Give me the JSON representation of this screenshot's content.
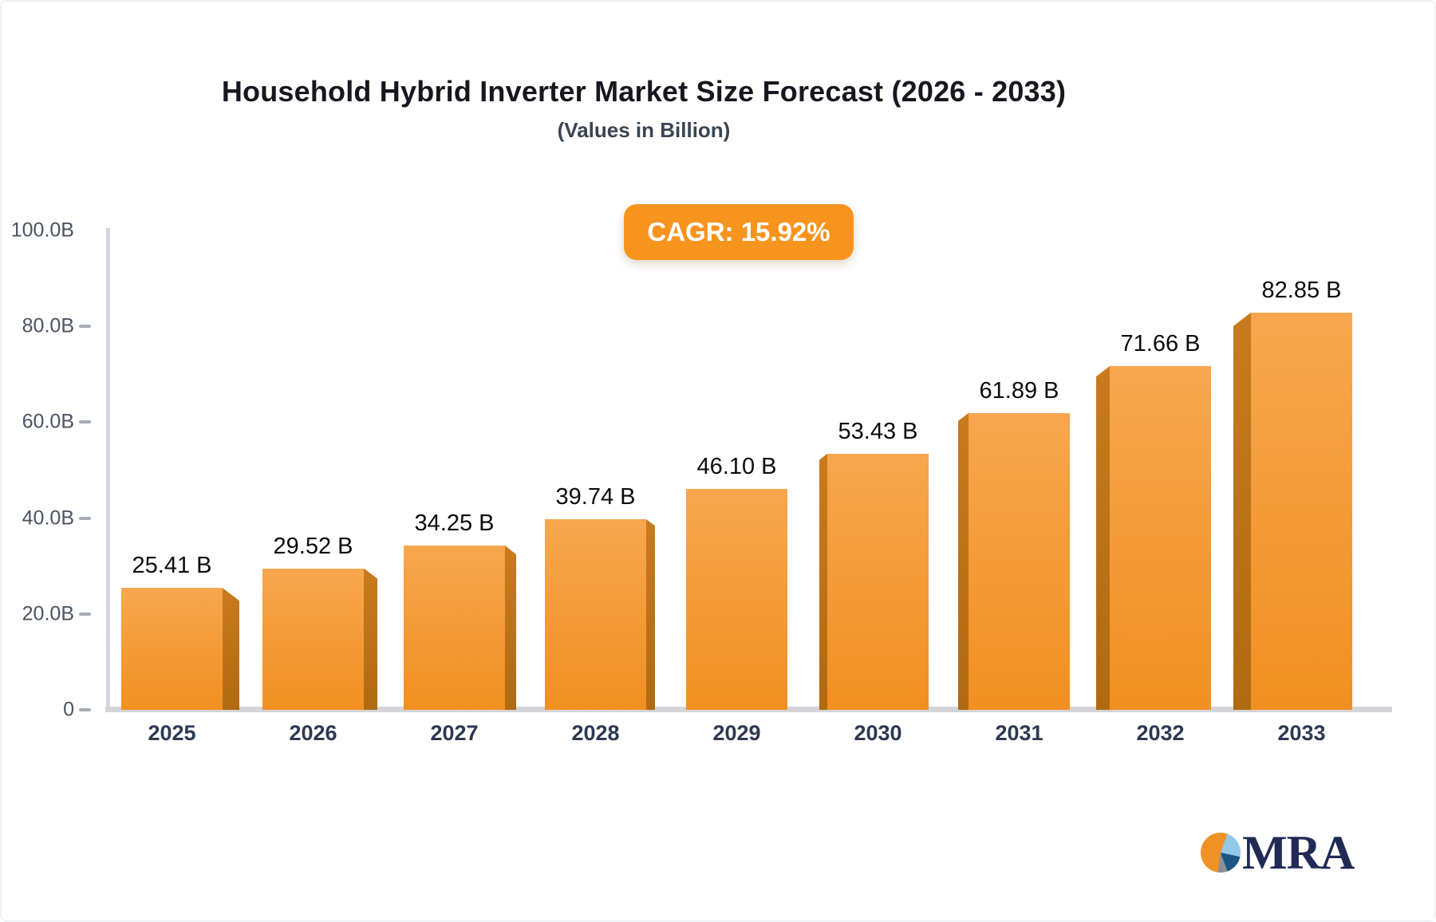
{
  "chart_data": {
    "type": "bar",
    "title": "Household Hybrid Inverter Market Size Forecast (2026 - 2033)",
    "subtitle": "(Values in Billion)",
    "annotation": "CAGR: 15.92%",
    "categories": [
      "2025",
      "2026",
      "2027",
      "2028",
      "2029",
      "2030",
      "2031",
      "2032",
      "2033"
    ],
    "values": [
      25.41,
      29.52,
      34.25,
      39.74,
      46.1,
      53.43,
      61.89,
      71.66,
      82.85
    ],
    "value_labels": [
      "25.41 B",
      "29.52 B",
      "34.25 B",
      "39.74 B",
      "46.10 B",
      "53.43 B",
      "61.89 B",
      "71.66 B",
      "82.85 B"
    ],
    "xlabel": "",
    "ylabel": "",
    "ylim": [
      0,
      100
    ],
    "yticks": [
      {
        "label": "0",
        "value": 0
      },
      {
        "label": "20.0B",
        "value": 20
      },
      {
        "label": "40.0B",
        "value": 40
      },
      {
        "label": "60.0B",
        "value": 60
      },
      {
        "label": "80.0B",
        "value": 80
      },
      {
        "label": "100.0B",
        "value": 100
      }
    ],
    "grid": false,
    "legend": false,
    "bar_color_top": "#f7a74e",
    "bar_color_bottom": "#f19021",
    "bar_side_color": "#bd7318",
    "badge_color": "#f7941e"
  },
  "logo": {
    "text": "MRA",
    "pie_colors": [
      "#ee9227",
      "#92c9e9",
      "#1a5584",
      "#8f9095"
    ]
  }
}
